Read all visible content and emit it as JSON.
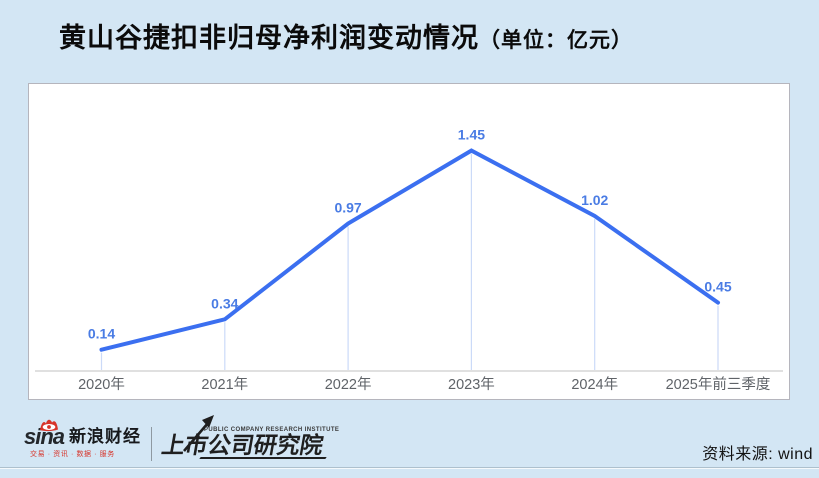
{
  "title": {
    "main": "黄山谷捷扣非归母净利润变动情况",
    "unit": "（单位：亿元）"
  },
  "chart_data": {
    "type": "line",
    "title": "黄山谷捷扣非归母净利润变动情况",
    "unit_label": "亿元",
    "categories": [
      "2020年",
      "2021年",
      "2022年",
      "2023年",
      "2024年",
      "2025年前三季度"
    ],
    "values": [
      0.14,
      0.34,
      0.97,
      1.45,
      1.02,
      0.45
    ],
    "data_labels": [
      "0.14",
      "0.34",
      "0.97",
      "1.45",
      "1.02",
      "0.45"
    ],
    "ylim": [
      0,
      1.6
    ],
    "grid": "off",
    "legend": "none",
    "line_color": "#3B6FF0",
    "label_color": "#4A7CE4",
    "drop_line_color": "#AFC6F4",
    "axis_line_color": "#D6D6D6",
    "axis_label_color": "#5F6368"
  },
  "footer": {
    "sina": {
      "wordmark": "sina",
      "brand": "新浪财经",
      "tagline": "交易 · 资讯 · 数据 · 服务"
    },
    "institute": {
      "name_cn": "上市公司研究院",
      "name_en": "PUBLIC COMPANY RESEARCH INSTITUTE"
    },
    "source": "资料来源: wind"
  },
  "colors": {
    "background": "#D3E6F4",
    "panel": "#FFFFFF",
    "panel_border": "#B5B5BD",
    "sina_red": "#D7342A",
    "logo_black": "#1F1F1F"
  }
}
